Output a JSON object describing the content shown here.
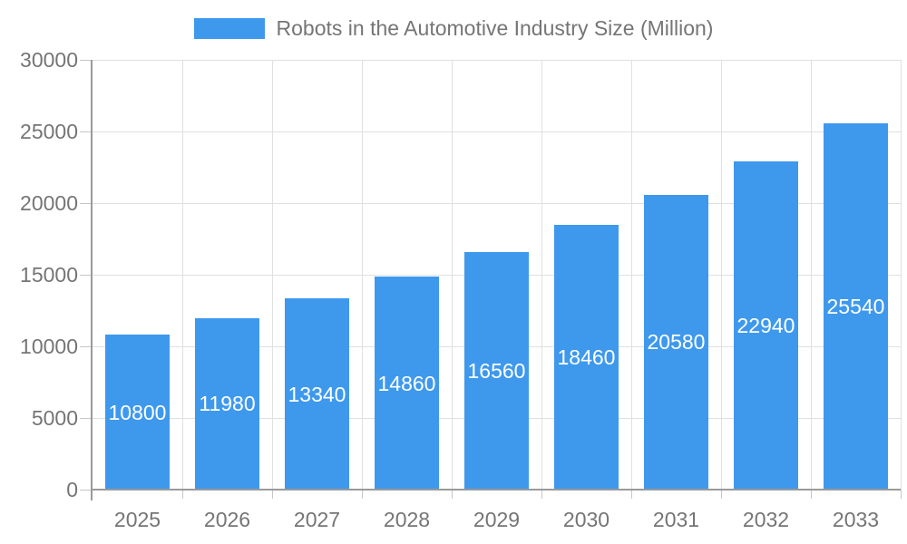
{
  "legend": {
    "label": "Robots in the Automotive Industry Size (Million)"
  },
  "colors": {
    "bar": "#3e99ed",
    "grid": "#e0e0e0",
    "axis": "#9a9a9a",
    "tick": "#c6c6c6",
    "text": "#757575",
    "value_text": "#ffffff",
    "background": "#ffffff"
  },
  "chart_data": {
    "type": "bar",
    "title": "Robots in the Automotive Industry Size (Million)",
    "categories": [
      "2025",
      "2026",
      "2027",
      "2028",
      "2029",
      "2030",
      "2031",
      "2032",
      "2033"
    ],
    "values": [
      10800,
      11980,
      13340,
      14860,
      16560,
      18460,
      20580,
      22940,
      25540
    ],
    "value_labels_shown": true,
    "value_label_position": "center-of-bar",
    "xlabel": "",
    "ylabel": "",
    "ylim": [
      0,
      30000
    ],
    "yticks": [
      0,
      5000,
      10000,
      15000,
      20000,
      25000,
      30000
    ],
    "grid": true,
    "legend_position": "top-center"
  }
}
